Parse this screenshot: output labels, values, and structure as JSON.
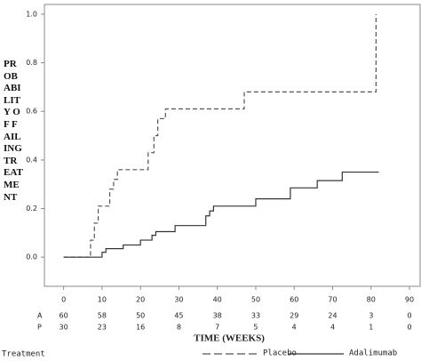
{
  "chart_data": {
    "type": "step",
    "y_label": "PROBABILITY OF FAILING TREATMENT",
    "x_label": "TIME (WEEKS)",
    "xlim": [
      -5,
      93
    ],
    "ylim": [
      -0.12,
      1.04
    ],
    "xticks": [
      0,
      10,
      20,
      30,
      40,
      50,
      60,
      70,
      80,
      90
    ],
    "yticks": [
      {
        "value": 0,
        "label": "0.0"
      },
      0.2,
      0.4,
      0.6,
      0.8,
      {
        "value": 1,
        "label": "1.0"
      }
    ],
    "legend_title": "Treatment",
    "series": [
      {
        "name": "Placebo",
        "color": "#555555",
        "dashed": true,
        "x": [
          0,
          7,
          8,
          9,
          12,
          13,
          14,
          22,
          23.5,
          24.5,
          26.5,
          47,
          81.3
        ],
        "values": [
          0,
          0.07,
          0.14,
          0.21,
          0.28,
          0.32,
          0.36,
          0.43,
          0.5,
          0.57,
          0.61,
          0.68,
          1.0
        ]
      },
      {
        "name": "Adalimumab",
        "color": "#333333",
        "dashed": false,
        "x": [
          0,
          10,
          11,
          15.5,
          20,
          23,
          24,
          29,
          37,
          38,
          39,
          50,
          59,
          66,
          72.5,
          82
        ],
        "values": [
          0,
          0.02,
          0.035,
          0.05,
          0.07,
          0.09,
          0.105,
          0.13,
          0.17,
          0.19,
          0.21,
          0.24,
          0.285,
          0.315,
          0.35,
          0.35
        ]
      }
    ],
    "risk_table": [
      {
        "label": "A",
        "values": [
          60,
          58,
          50,
          45,
          38,
          33,
          29,
          24,
          3,
          0
        ]
      },
      {
        "label": "P",
        "values": [
          30,
          23,
          16,
          8,
          7,
          5,
          4,
          4,
          1,
          0
        ]
      }
    ]
  }
}
